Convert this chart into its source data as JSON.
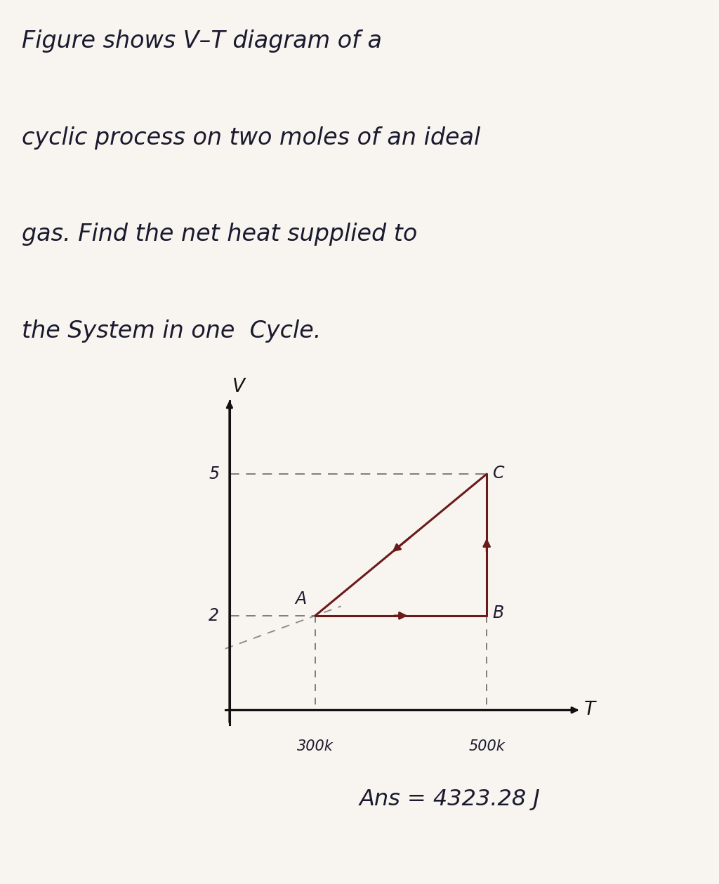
{
  "title_lines": [
    "Figure shows V–T diagram of a",
    "cyclic process on two moles of an ideal",
    "gas. Find the net heat supplied to",
    "the System in one  Cycle."
  ],
  "answer_text": "Ans = 4323.28 J",
  "points": {
    "A": [
      300,
      2
    ],
    "B": [
      500,
      2
    ],
    "C": [
      500,
      5
    ]
  },
  "line_color": "#6B1A1A",
  "dashed_color": "#555555",
  "axis_color": "#111111",
  "text_color": "#1a1a2e",
  "background_color": "#f8f5f0",
  "fig_width": 10.24,
  "fig_height": 12.59
}
